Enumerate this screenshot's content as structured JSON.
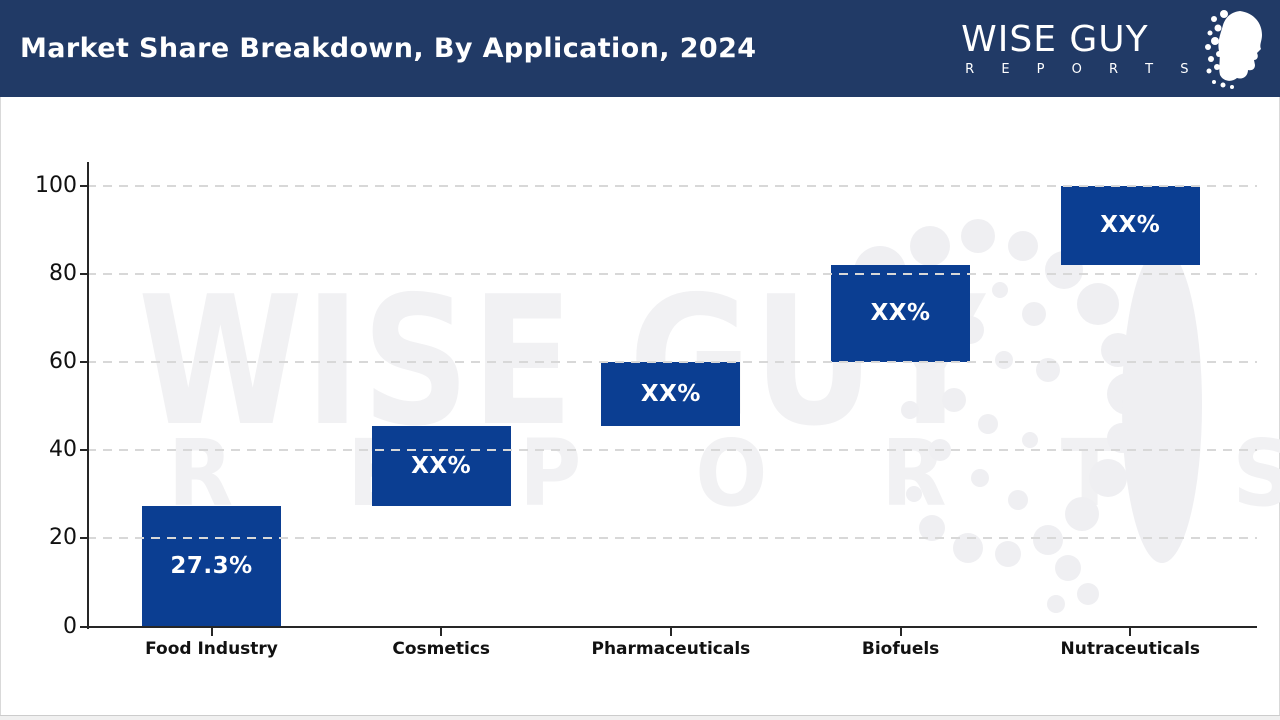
{
  "header": {
    "title": "Market Share Breakdown, By Application, 2024",
    "bg_color": "#213a66",
    "logo": {
      "line1": "WISE GUY",
      "line2": "R E P O R T S"
    }
  },
  "watermark": {
    "line1": "WISE GUY",
    "line2": "R E P O R T S"
  },
  "chart_data": {
    "type": "bar",
    "subtype": "floating-waterfall",
    "title": "Market Share Breakdown, By Application, 2024",
    "xlabel": "",
    "ylabel": "",
    "categories": [
      "Food Industry",
      "Cosmetics",
      "Pharmaceuticals",
      "Biofuels",
      "Nutraceuticals"
    ],
    "series": [
      {
        "name": "Market Share (%)",
        "ranges": [
          [
            0,
            27.3
          ],
          [
            27.3,
            45.5
          ],
          [
            45.5,
            60
          ],
          [
            60,
            82
          ],
          [
            82,
            100
          ]
        ],
        "labels": [
          "27.3%",
          "XX%",
          "XX%",
          "XX%",
          "XX%"
        ]
      }
    ],
    "yticks": [
      0,
      20,
      40,
      60,
      80,
      100
    ],
    "ylim": [
      0,
      105
    ],
    "grid": "horizontal-dashed",
    "legend": "none",
    "bar_color": "#0b3e92",
    "grid_color": "#d8d8d8",
    "axis_color": "#262626"
  }
}
